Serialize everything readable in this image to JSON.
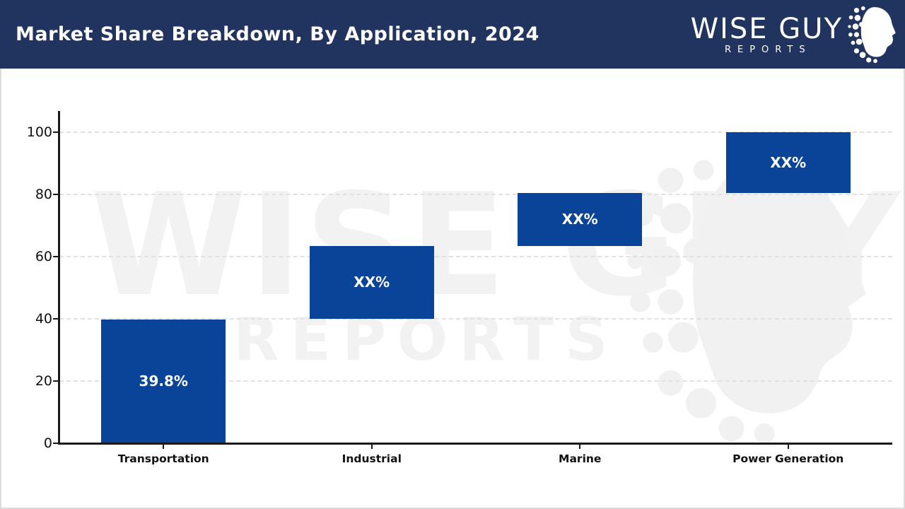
{
  "header": {
    "title": "Market Share Breakdown, By Application, 2024",
    "bg_color": "#213460",
    "logo": {
      "line1": "WISE GUY",
      "line2": "REPORTS",
      "icon": "wiseguy-head-icon"
    }
  },
  "watermark": {
    "line1": "WISE GUY",
    "line2": "REPORTS",
    "icon": "wiseguy-head-watermark-icon",
    "color": "#f2f2f3"
  },
  "chart_data": {
    "type": "bar",
    "subtype": "waterfall",
    "title": "Market Share Breakdown, By Application, 2024",
    "categories": [
      "Transportation",
      "Industrial",
      "Marine",
      "Power Generation"
    ],
    "segments": [
      {
        "category": "Transportation",
        "start": 0,
        "end": 39.8,
        "label": "39.8%"
      },
      {
        "category": "Industrial",
        "start": 40,
        "end": 63.5,
        "label": "XX%"
      },
      {
        "category": "Marine",
        "start": 63.5,
        "end": 80.5,
        "label": "XX%"
      },
      {
        "category": "Power Generation",
        "start": 80.5,
        "end": 100,
        "label": "XX%"
      }
    ],
    "xlabel": "",
    "ylabel": "",
    "ylim": [
      0,
      100
    ],
    "yticks": [
      0,
      20,
      40,
      60,
      80,
      100
    ],
    "grid": "horizontal-dashed",
    "legend": "none",
    "bar_color": "#0a4499",
    "bar_label_color": "#ffffff",
    "axis_color": "#1a1a1a"
  }
}
